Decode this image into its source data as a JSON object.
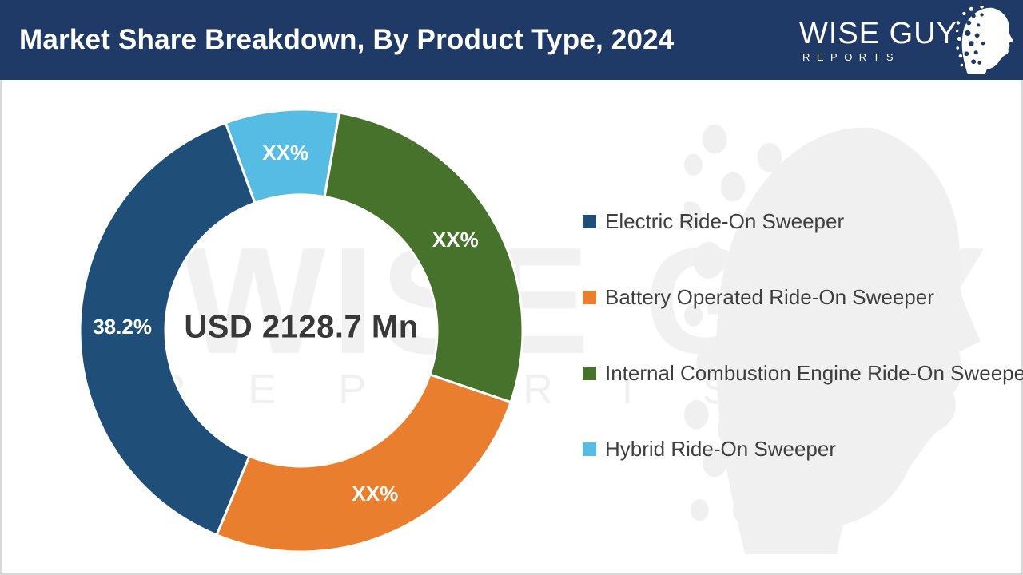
{
  "header": {
    "title": "Market Share Breakdown, By Product Type, 2024",
    "logo": {
      "primary": "WISE GUY",
      "secondary": "REPORTS"
    }
  },
  "watermark": {
    "big_text": "WISE GUY",
    "sub_text": "REPORTS"
  },
  "colors": {
    "header_background": "#1f3a67",
    "page_background": "#ffffff",
    "center_text": "#383838",
    "legend_text": "#3f3f3f",
    "page_border": "#d9d9d9",
    "watermark": "#f0f0f0"
  },
  "chart_data": {
    "type": "pie",
    "variant": "donut",
    "title": "Market Share Breakdown, By Product Type, 2024",
    "center_label": "USD 2128.7 Mn",
    "legend_position": "right",
    "start_angle_deg": -20,
    "clockwise": true,
    "segments": [
      {
        "label": "Electric Ride-On Sweeper",
        "display_value": "38.2%",
        "value_pct_est": 38.2,
        "color": "#1f4e79"
      },
      {
        "label": "Battery Operated Ride-On Sweeper",
        "display_value": "XX%",
        "value_pct_est": 26.0,
        "color": "#e87e2e"
      },
      {
        "label": "Internal Combustion Engine Ride-On Sweeper",
        "display_value": "XX%",
        "value_pct_est": 27.5,
        "color": "#47722c"
      },
      {
        "label": "Hybrid Ride-On Sweeper",
        "display_value": "XX%",
        "value_pct_est": 8.3,
        "color": "#56bce4"
      }
    ],
    "draw_order_clockwise": [
      3,
      2,
      1,
      0
    ]
  }
}
